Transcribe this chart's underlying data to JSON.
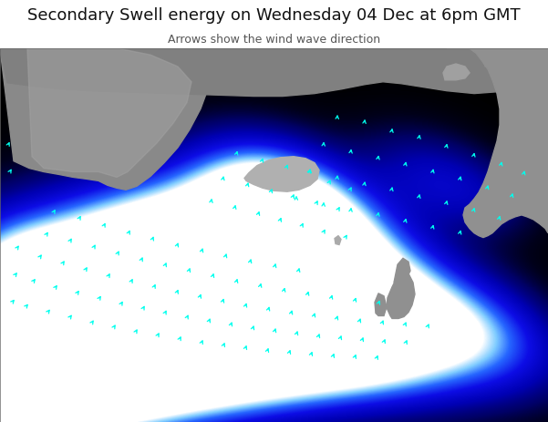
{
  "title": "Secondary Swell energy on Wednesday 04 Dec at 6pm GMT",
  "subtitle": "Arrows show the wind wave direction",
  "title_fontsize": 13,
  "subtitle_fontsize": 9,
  "title_color": "#111111",
  "subtitle_color": "#555555",
  "bg_color": "#ffffff",
  "fig_width": 6.01,
  "fig_height": 4.63,
  "dpi": 100,
  "arrow_color": "#00ffee"
}
